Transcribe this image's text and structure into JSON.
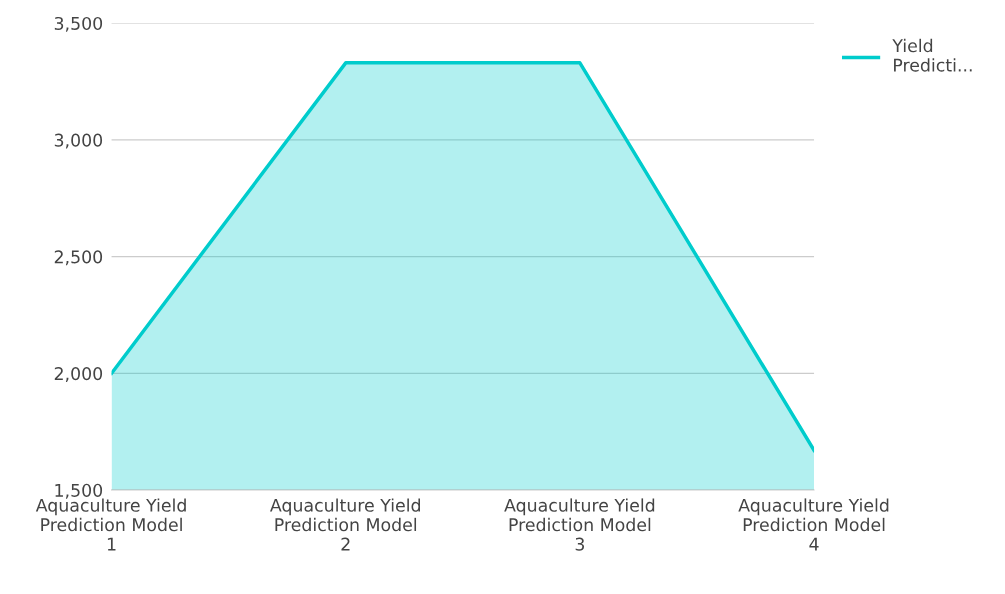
{
  "chart_data": {
    "type": "area",
    "categories": [
      "Aquaculture Yield\nPrediction Model\n1",
      "Aquaculture Yield\nPrediction Model\n2",
      "Aquaculture Yield\nPrediction Model\n3",
      "Aquaculture Yield\nPrediction Model\n4"
    ],
    "series": [
      {
        "name": "Yield\nPredicti...",
        "color": "#00cccc",
        "values": [
          2000,
          3330,
          3330,
          1670
        ]
      }
    ],
    "ylim": [
      1500,
      3500
    ],
    "yticks": [
      {
        "value": 1500,
        "label": "1,500"
      },
      {
        "value": 2000,
        "label": "2,000"
      },
      {
        "value": 2500,
        "label": "2,500"
      },
      {
        "value": 3000,
        "label": "3,000"
      },
      {
        "value": 3500,
        "label": "3,500"
      }
    ],
    "grid": "y",
    "legend": "top right"
  }
}
